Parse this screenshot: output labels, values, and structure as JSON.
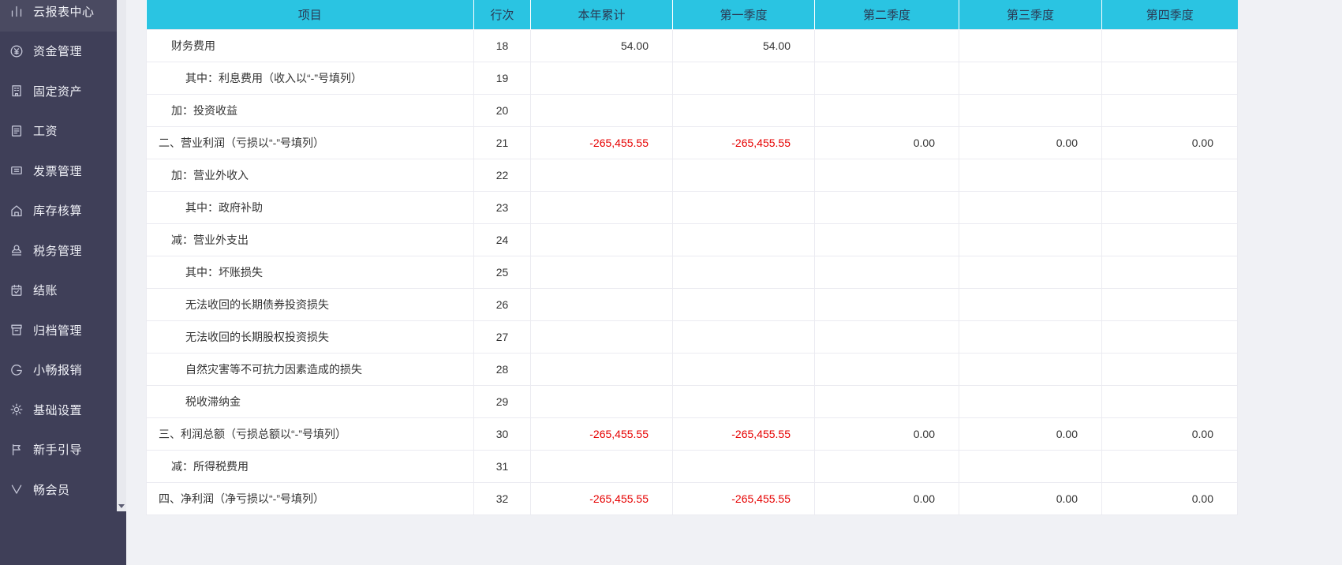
{
  "sidebar": {
    "items": [
      {
        "id": "cloud-report-center",
        "label": "云报表中心",
        "icon": "chart-icon"
      },
      {
        "id": "funds-management",
        "label": "资金管理",
        "icon": "money-circle-icon"
      },
      {
        "id": "fixed-assets",
        "label": "固定资产",
        "icon": "building-icon"
      },
      {
        "id": "salary",
        "label": "工资",
        "icon": "document-icon"
      },
      {
        "id": "invoice-management",
        "label": "发票管理",
        "icon": "ticket-icon"
      },
      {
        "id": "inventory-accounting",
        "label": "库存核算",
        "icon": "warehouse-icon"
      },
      {
        "id": "tax-management",
        "label": "税务管理",
        "icon": "stamp-icon"
      },
      {
        "id": "closing",
        "label": "结账",
        "icon": "calendar-check-icon"
      },
      {
        "id": "archive-management",
        "label": "归档管理",
        "icon": "archive-icon"
      },
      {
        "id": "xiaochang-reimburse",
        "label": "小畅报销",
        "icon": "g-icon"
      },
      {
        "id": "basic-settings",
        "label": "基础设置",
        "icon": "gear-icon"
      },
      {
        "id": "beginner-guide",
        "label": "新手引导",
        "icon": "flag-icon"
      },
      {
        "id": "chang-member",
        "label": "畅会员",
        "icon": "v-icon"
      }
    ]
  },
  "table": {
    "headers": [
      "项目",
      "行次",
      "本年累计",
      "第一季度",
      "第二季度",
      "第三季度",
      "第四季度"
    ],
    "rows": [
      {
        "item": "财务费用",
        "indent": 1,
        "line": "18",
        "values": [
          "54.00",
          "54.00",
          "",
          "",
          ""
        ]
      },
      {
        "item": "其中：利息费用（收入以“-”号填列）",
        "indent": 2,
        "line": "19",
        "values": [
          "",
          "",
          "",
          "",
          ""
        ]
      },
      {
        "item": "加：投资收益",
        "indent": 1,
        "line": "20",
        "values": [
          "",
          "",
          "",
          "",
          ""
        ]
      },
      {
        "item": "二、营业利润（亏损以“-”号填列）",
        "indent": 0,
        "line": "21",
        "values": [
          "-265,455.55",
          "-265,455.55",
          "0.00",
          "0.00",
          "0.00"
        ]
      },
      {
        "item": "加：营业外收入",
        "indent": 1,
        "line": "22",
        "values": [
          "",
          "",
          "",
          "",
          ""
        ]
      },
      {
        "item": "其中：政府补助",
        "indent": 2,
        "line": "23",
        "values": [
          "",
          "",
          "",
          "",
          ""
        ]
      },
      {
        "item": "减：营业外支出",
        "indent": 1,
        "line": "24",
        "values": [
          "",
          "",
          "",
          "",
          ""
        ]
      },
      {
        "item": "其中：坏账损失",
        "indent": 2,
        "line": "25",
        "values": [
          "",
          "",
          "",
          "",
          ""
        ]
      },
      {
        "item": "无法收回的长期债券投资损失",
        "indent": 2,
        "line": "26",
        "values": [
          "",
          "",
          "",
          "",
          ""
        ]
      },
      {
        "item": "无法收回的长期股权投资损失",
        "indent": 2,
        "line": "27",
        "values": [
          "",
          "",
          "",
          "",
          ""
        ]
      },
      {
        "item": "自然灾害等不可抗力因素造成的损失",
        "indent": 2,
        "line": "28",
        "values": [
          "",
          "",
          "",
          "",
          ""
        ]
      },
      {
        "item": "税收滞纳金",
        "indent": 2,
        "line": "29",
        "values": [
          "",
          "",
          "",
          "",
          ""
        ]
      },
      {
        "item": "三、利润总额（亏损总额以“-”号填列）",
        "indent": 0,
        "line": "30",
        "values": [
          "-265,455.55",
          "-265,455.55",
          "0.00",
          "0.00",
          "0.00"
        ]
      },
      {
        "item": "减：所得税费用",
        "indent": 1,
        "line": "31",
        "values": [
          "",
          "",
          "",
          "",
          ""
        ]
      },
      {
        "item": "四、净利润（净亏损以“-”号填列）",
        "indent": 0,
        "line": "32",
        "values": [
          "-265,455.55",
          "-265,455.55",
          "0.00",
          "0.00",
          "0.00"
        ]
      }
    ]
  },
  "colors": {
    "accent": "#2ac4e2",
    "sidebar_bg": "#3f3f58",
    "negative": "#e60000",
    "header_text": "#2b3852",
    "table_border": "#ebebf1"
  }
}
